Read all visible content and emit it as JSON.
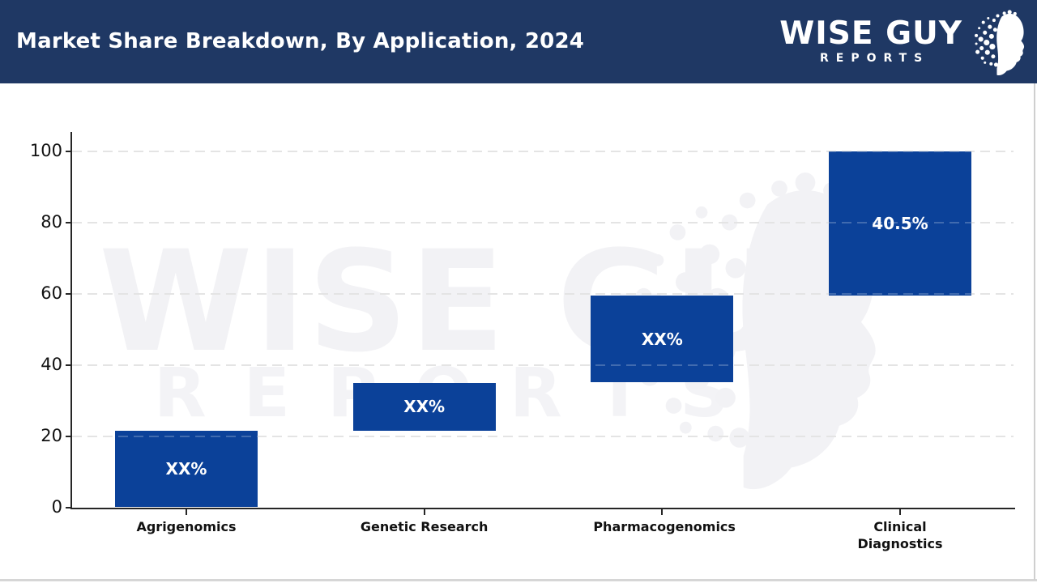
{
  "header": {
    "title": "Market Share Breakdown, By Application, 2024",
    "logo": {
      "line1": "WISE GUY",
      "line2": "REPORTS"
    }
  },
  "watermark": {
    "line1": "WISE GUY",
    "line2": "REPORTS"
  },
  "colors": {
    "header_bg": "#1f3864",
    "bar": "#0b4199",
    "bar_label": "#ffffff",
    "axis": "#262626",
    "grid": "#dcdcdc",
    "watermark": "#f2f2f5"
  },
  "chart_data": {
    "type": "bar",
    "variant": "waterfall-floating",
    "title": "Market Share Breakdown, By Application, 2024",
    "categories": [
      "Agrigenomics",
      "Genetic Research",
      "Pharmacogenomics",
      "Clinical Diagnostics"
    ],
    "segments": [
      {
        "category": "Agrigenomics",
        "start": 0,
        "end": 21.5,
        "label": "XX%"
      },
      {
        "category": "Genetic Research",
        "start": 21.5,
        "end": 35,
        "label": "XX%"
      },
      {
        "category": "Pharmacogenomics",
        "start": 35,
        "end": 59.5,
        "label": "XX%"
      },
      {
        "category": "Clinical Diagnostics",
        "start": 59.5,
        "end": 100,
        "label": "40.5%"
      }
    ],
    "yticks": [
      0,
      20,
      40,
      60,
      80,
      100
    ],
    "ylim": [
      0,
      100
    ],
    "xlabel": "",
    "ylabel": "",
    "grid": "dashed-horizontal",
    "legend": "none"
  }
}
